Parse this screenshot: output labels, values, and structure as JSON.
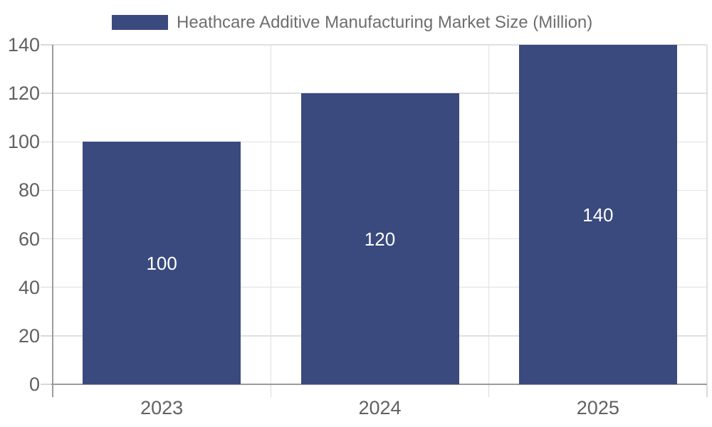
{
  "chart_data": {
    "type": "bar",
    "title": "Heathcare Additive Manufacturing Market Size (Million)",
    "legend_entries": [
      "Heathcare Additive Manufacturing Market Size (Million)"
    ],
    "legend_position": "top",
    "categories": [
      "2023",
      "2024",
      "2025"
    ],
    "series": [
      {
        "name": "Heathcare Additive Manufacturing Market Size (Million)",
        "values": [
          100,
          120,
          140
        ]
      }
    ],
    "bar_labels": [
      "100",
      "120",
      "140"
    ],
    "xlabel": "",
    "ylabel": "",
    "ylim": [
      0,
      140
    ],
    "yticks": [
      0,
      20,
      40,
      60,
      80,
      100,
      120,
      140
    ],
    "grid": true,
    "colors": {
      "bar": "#3A4A7E",
      "grid": "#E0E0E0",
      "tick": "#D9D9D9",
      "axis": "#9B9B9B",
      "tick_label": "#616161",
      "title": "#6E6E6E",
      "bar_label": "#FFFFFF",
      "background": "#FFFFFF"
    }
  }
}
